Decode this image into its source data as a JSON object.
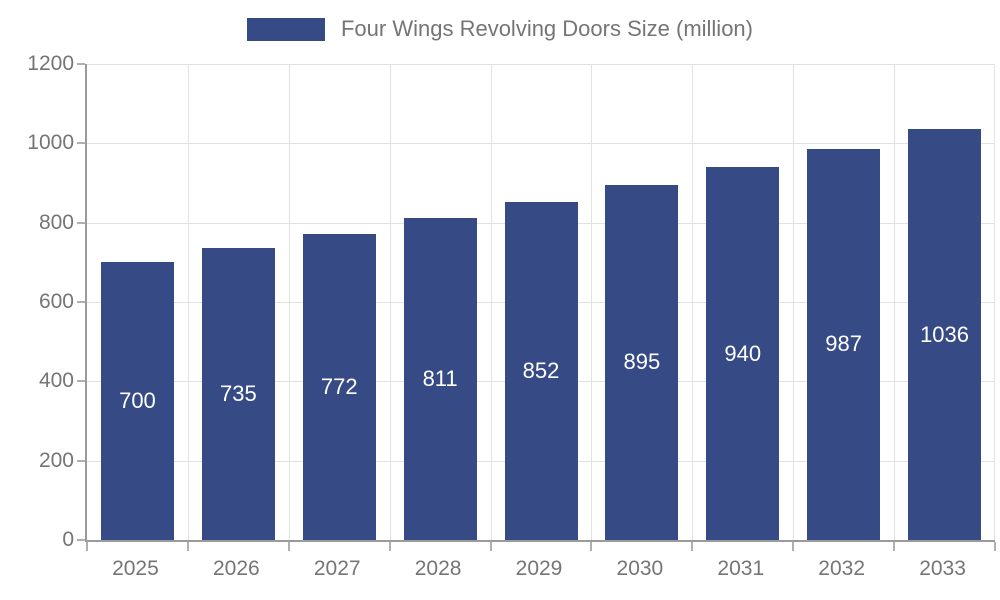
{
  "chart_data": {
    "type": "bar",
    "title": "",
    "legend": {
      "label": "Four Wings Revolving Doors Size (million)",
      "position": "top-center"
    },
    "categories": [
      "2025",
      "2026",
      "2027",
      "2028",
      "2029",
      "2030",
      "2031",
      "2032",
      "2033"
    ],
    "series": [
      {
        "name": "Four Wings Revolving Doors Size (million)",
        "values": [
          700,
          735,
          772,
          811,
          852,
          895,
          940,
          987,
          1036
        ]
      }
    ],
    "xlabel": "",
    "ylabel": "",
    "ylim": [
      0,
      1200
    ],
    "yticks": [
      0,
      200,
      400,
      600,
      800,
      1000,
      1200
    ],
    "grid": true,
    "value_labels": "inside-center",
    "colors": {
      "bar": "#364A86",
      "bar_value_text": "#ffffff",
      "axis_text": "#757575",
      "legend_text": "#757575",
      "gridline": "#e2e2e2",
      "axis_line": "#9a9a9a",
      "tick_mark": "#b0b0b0",
      "background": "#ffffff"
    }
  }
}
